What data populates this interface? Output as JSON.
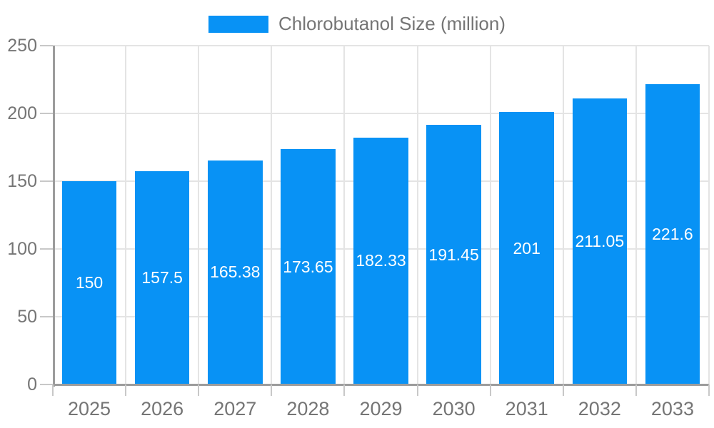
{
  "chart_data": {
    "type": "bar",
    "title": "",
    "legend": {
      "label": "Chlorobutanol Size (million)",
      "position": "top-center"
    },
    "categories": [
      "2025",
      "2026",
      "2027",
      "2028",
      "2029",
      "2030",
      "2031",
      "2032",
      "2033"
    ],
    "series": [
      {
        "name": "Chlorobutanol Size (million)",
        "values": [
          150,
          157.5,
          165.38,
          173.65,
          182.33,
          191.45,
          201,
          211.05,
          221.6
        ]
      }
    ],
    "value_labels": [
      "150",
      "157.5",
      "165.38",
      "173.65",
      "182.33",
      "191.45",
      "201",
      "211.05",
      "221.6"
    ],
    "xlabel": "",
    "ylabel": "",
    "ylim": [
      0,
      250
    ],
    "yticks": [
      0,
      50,
      100,
      150,
      200,
      250
    ],
    "grid": true,
    "bar_label_position": "center-inside"
  },
  "colors": {
    "bar": "#0892f5",
    "axis_text": "#757575",
    "bar_label_text": "#ffffff",
    "grid_line": "#e4e4e4",
    "axis_line": "#9c9c9c",
    "tick": "#c8c8c8",
    "background": "#ffffff"
  }
}
